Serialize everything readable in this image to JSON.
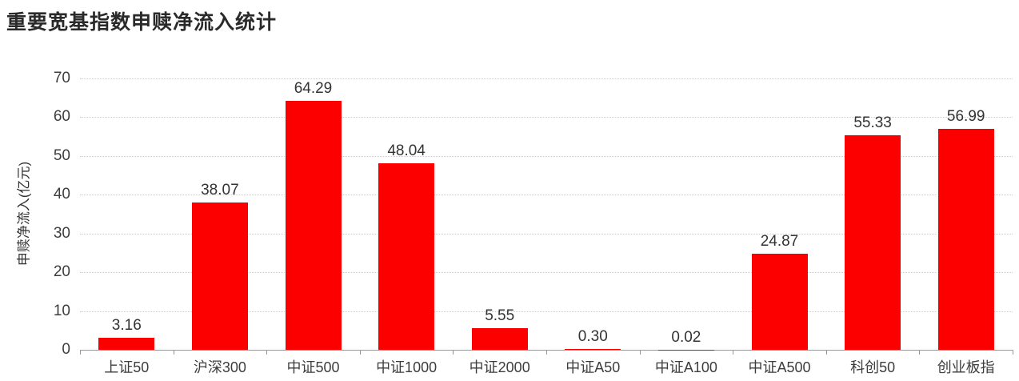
{
  "chart_data": {
    "type": "bar",
    "title": "重要宽基指数申赎净流入统计",
    "xlabel": "",
    "ylabel": "申赎净流入(亿元)",
    "categories": [
      "上证50",
      "沪深300",
      "中证500",
      "中证1000",
      "中证2000",
      "中证A50",
      "中证A100",
      "中证A500",
      "科创50",
      "创业板指"
    ],
    "values": [
      3.16,
      38.07,
      64.29,
      48.04,
      5.55,
      0.3,
      0.02,
      24.87,
      55.33,
      56.99
    ],
    "value_labels": [
      "3.16",
      "38.07",
      "64.29",
      "48.04",
      "5.55",
      "0.30",
      "0.02",
      "24.87",
      "55.33",
      "56.99"
    ],
    "ylim": [
      0,
      70
    ],
    "yticks": [
      0,
      10,
      20,
      30,
      40,
      50,
      60,
      70
    ],
    "legend_position": "none",
    "grid": "dotted-horizontal",
    "bar_color": "#fc0000",
    "grid_color": "#cccccc",
    "axis_line_color": "#999999",
    "text_color": "#333333"
  }
}
